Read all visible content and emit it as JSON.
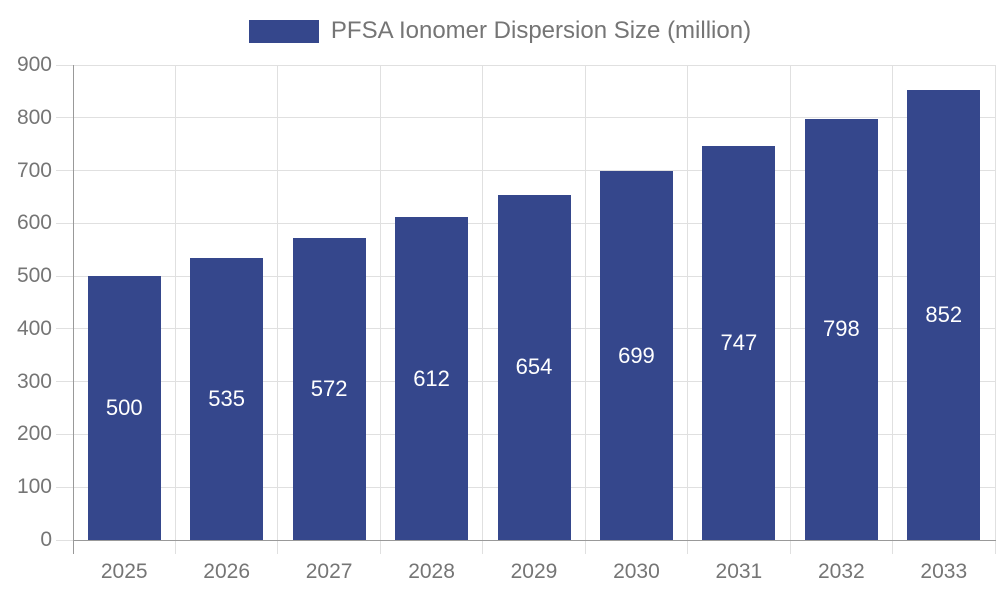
{
  "legend": {
    "label": "PFSA Ionomer Dispersion Size (million)"
  },
  "chart_data": {
    "type": "bar",
    "title": "PFSA Ionomer Dispersion Size (million)",
    "series_name": "PFSA Ionomer Dispersion Size (million)",
    "categories": [
      "2025",
      "2026",
      "2027",
      "2028",
      "2029",
      "2030",
      "2031",
      "2032",
      "2033"
    ],
    "values": [
      500,
      535,
      572,
      612,
      654,
      699,
      747,
      798,
      852
    ],
    "xlabel": "",
    "ylabel": "",
    "ylim": [
      0,
      900
    ],
    "y_ticks": [
      0,
      100,
      200,
      300,
      400,
      500,
      600,
      700,
      800,
      900
    ],
    "grid": true,
    "legend_position": "top-center",
    "bar_color": "#35478C",
    "value_label_color": "#FFFFFF",
    "axis_label_color": "#757575",
    "grid_color": "#E0E0E0",
    "axis_line_color": "#999999"
  }
}
